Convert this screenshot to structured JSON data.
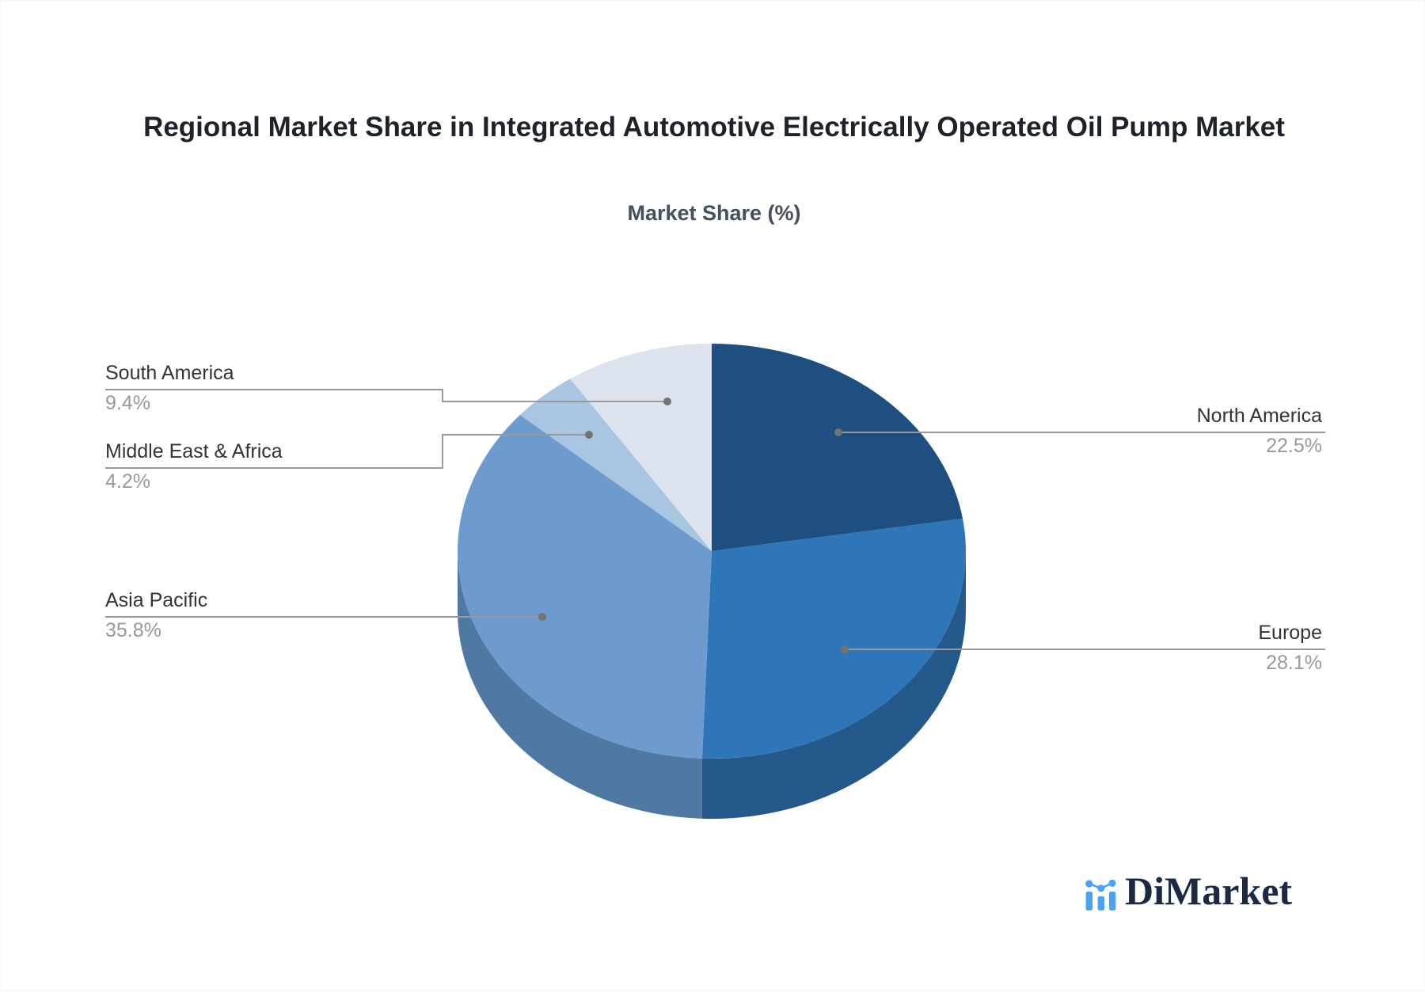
{
  "title": "Regional Market Share in Integrated Automotive Electrically Operated Oil Pump Market",
  "subtitle": "Market Share (%)",
  "brand": {
    "name": "DiMarket",
    "icon": "bar-chart-logo-icon",
    "icon_color": "#4aa3f7",
    "text_color": "#1b2a44"
  },
  "colors": {
    "title_text": "#1e232b",
    "subtitle_text": "#445060",
    "label_text": "#333333",
    "percent_text": "#999999",
    "leader_line": "#999999",
    "leader_dot": "#737373",
    "background": "#ffffff"
  },
  "chart_data": {
    "type": "pie",
    "style": "3d",
    "title": "Regional Market Share in Integrated Automotive Electrically Operated Oil Pump Market",
    "subtitle": "Market Share (%)",
    "unit": "%",
    "start_angle": "12-o-clock",
    "direction": "clockwise",
    "legend": "none (direct labels with leader lines)",
    "slices": [
      {
        "label": "North America",
        "value": 22.5,
        "display": "22.5%",
        "color": "#1e4f80",
        "side_color": "#163a5e"
      },
      {
        "label": "Europe",
        "value": 28.1,
        "display": "28.1%",
        "color": "#2e76b7",
        "side_color": "#25598c"
      },
      {
        "label": "Asia Pacific",
        "value": 35.8,
        "display": "35.8%",
        "color": "#6d9bce",
        "side_color": "#4f78a2"
      },
      {
        "label": "Middle East & Africa",
        "value": 4.2,
        "display": "4.2%",
        "color": "#a8c5e1",
        "side_color": "#7e9dbd"
      },
      {
        "label": "South America",
        "value": 9.4,
        "display": "9.4%",
        "color": "#dce3ed",
        "side_color": "#a9b6c6"
      }
    ]
  }
}
